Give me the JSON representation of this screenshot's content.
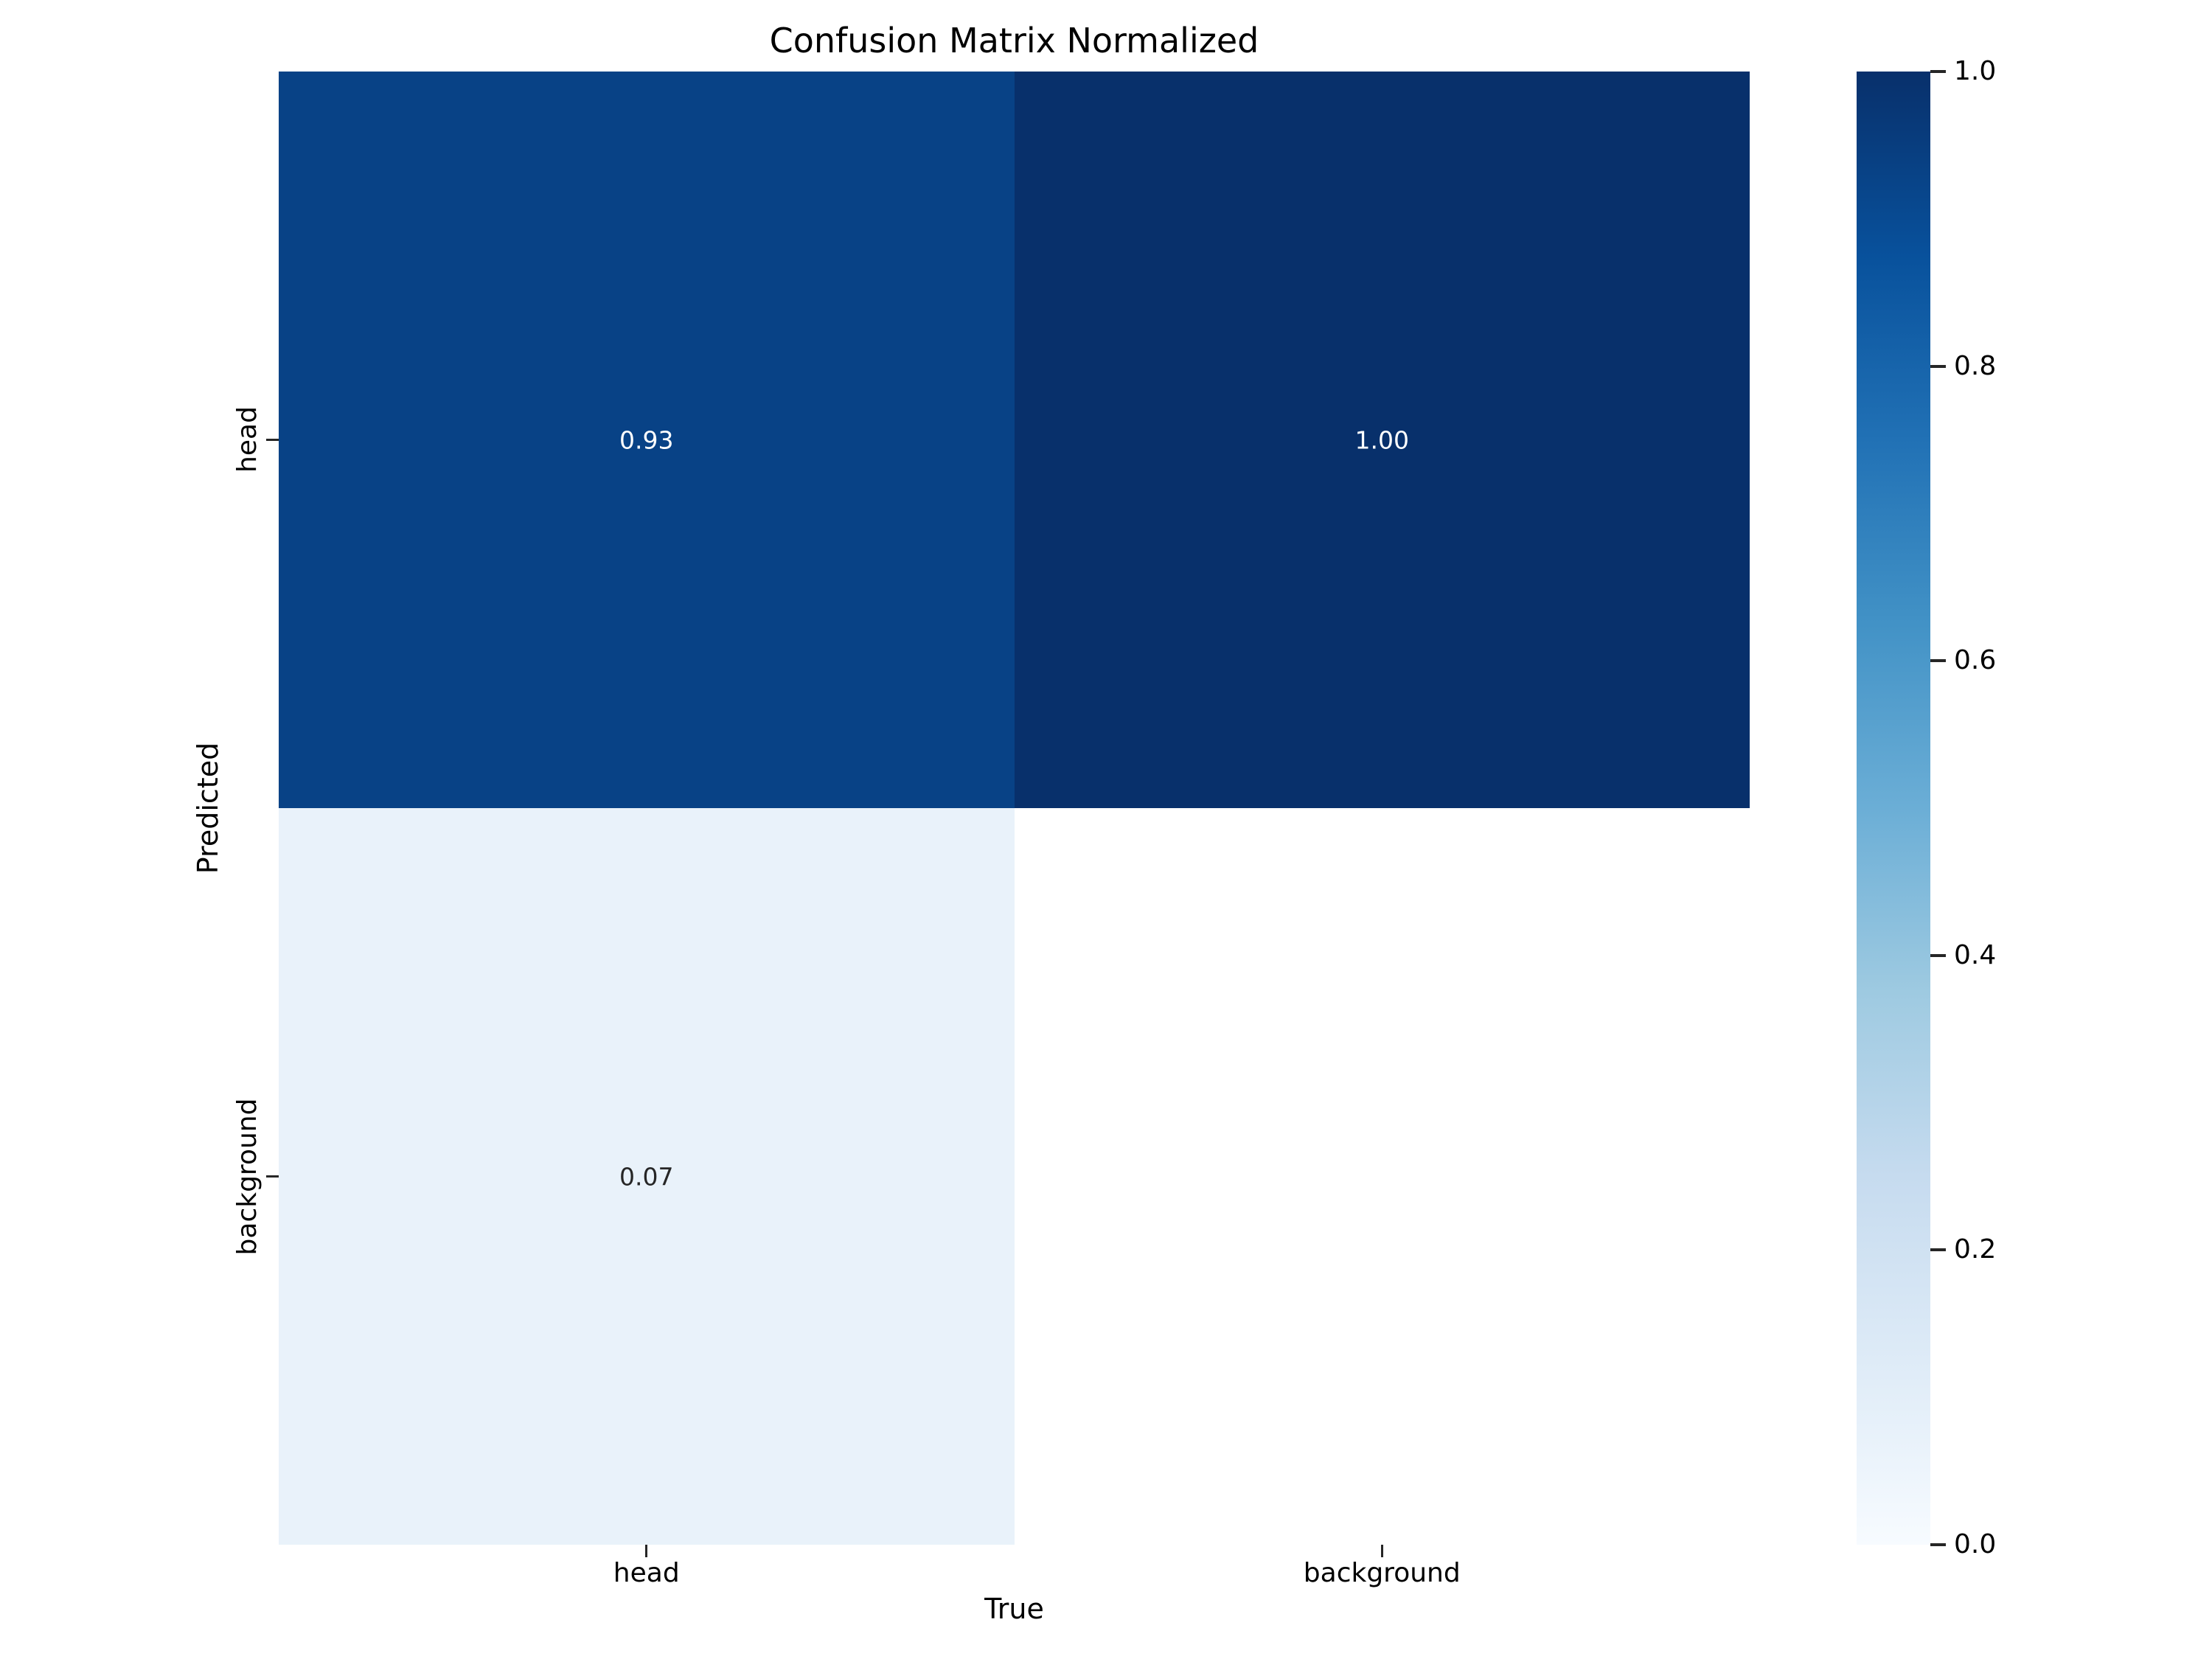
{
  "chart_data": {
    "type": "heatmap",
    "title": "Confusion Matrix Normalized",
    "xlabel": "True",
    "ylabel": "Predicted",
    "x_tick_labels": [
      "head",
      "background"
    ],
    "y_tick_labels": [
      "head",
      "background"
    ],
    "rows": [
      {
        "predicted": "head",
        "values": [
          0.93,
          1.0
        ]
      },
      {
        "predicted": "background",
        "values": [
          0.07,
          null
        ]
      }
    ],
    "cells": [
      [
        "0.93",
        "1.00"
      ],
      [
        "0.07",
        ""
      ]
    ],
    "cell_colors": [
      [
        "#084286",
        "#08306b"
      ],
      [
        "#e9f2fa",
        "#ffffff"
      ]
    ],
    "cell_text_colors": [
      [
        "#ffffff",
        "#ffffff"
      ],
      [
        "#262626",
        "#262626"
      ]
    ],
    "colormap": "Blues",
    "grid": false,
    "colorbar": {
      "position": "right",
      "range": [
        0.0,
        1.0
      ],
      "ticks": [
        "1.0",
        "0.8",
        "0.6",
        "0.4",
        "0.2",
        "0.0"
      ],
      "gradient_stops": [
        "#f7fbff",
        "#deebf7",
        "#c6dbef",
        "#9ecae1",
        "#6baed6",
        "#4292c6",
        "#2171b5",
        "#08519c",
        "#08306b"
      ]
    }
  }
}
